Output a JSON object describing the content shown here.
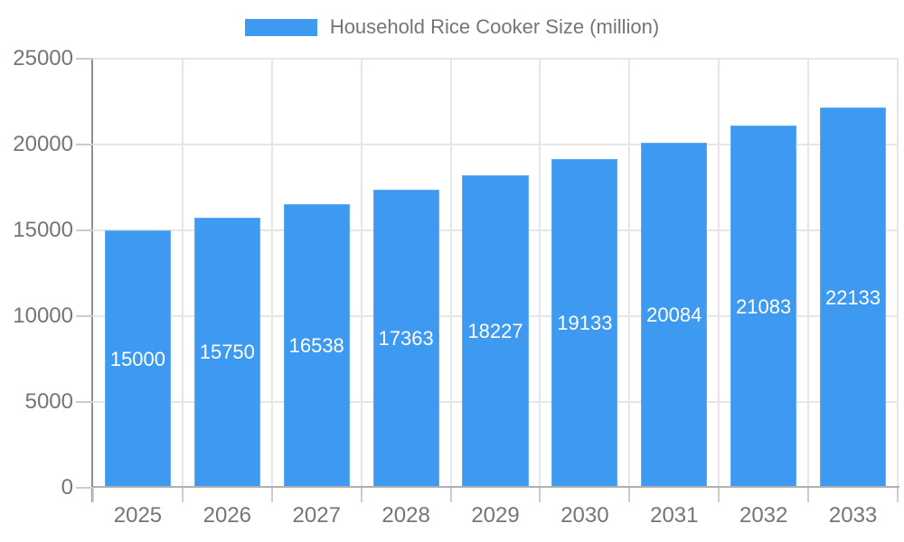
{
  "legend": {
    "label": "Household Rice Cooker Size (million)"
  },
  "chart_data": {
    "type": "bar",
    "title": "Household Rice Cooker Size (million)",
    "categories": [
      "2025",
      "2026",
      "2027",
      "2028",
      "2029",
      "2030",
      "2031",
      "2032",
      "2033"
    ],
    "values": [
      15000,
      15750,
      16538,
      17363,
      18227,
      19133,
      20084,
      21083,
      22133
    ],
    "bar_labels": [
      "15000",
      "15750",
      "16538",
      "17363",
      "18227",
      "19133",
      "20084",
      "21083",
      "22133"
    ],
    "series": [
      {
        "name": "Household Rice Cooker Size (million)",
        "values": [
          15000,
          15750,
          16538,
          17363,
          18227,
          19133,
          20084,
          21083,
          22133
        ]
      }
    ],
    "xlabel": "",
    "ylabel": "",
    "ylim": [
      0,
      25000
    ],
    "yticks": [
      0,
      5000,
      10000,
      15000,
      20000,
      25000
    ],
    "grid": true,
    "legend_position": "top",
    "value_labels_position": "inside-center",
    "colors": {
      "bar": "#3D9AF0",
      "bar_edge": "#5FACF3",
      "grid": "#E6E6E6",
      "axis": "#8F8F8F",
      "baseline": "#B0B0B0",
      "tick": "#CCCCCC",
      "text": "#757575",
      "bar_label": "#FFFFFF",
      "background": "#FFFFFF"
    }
  }
}
